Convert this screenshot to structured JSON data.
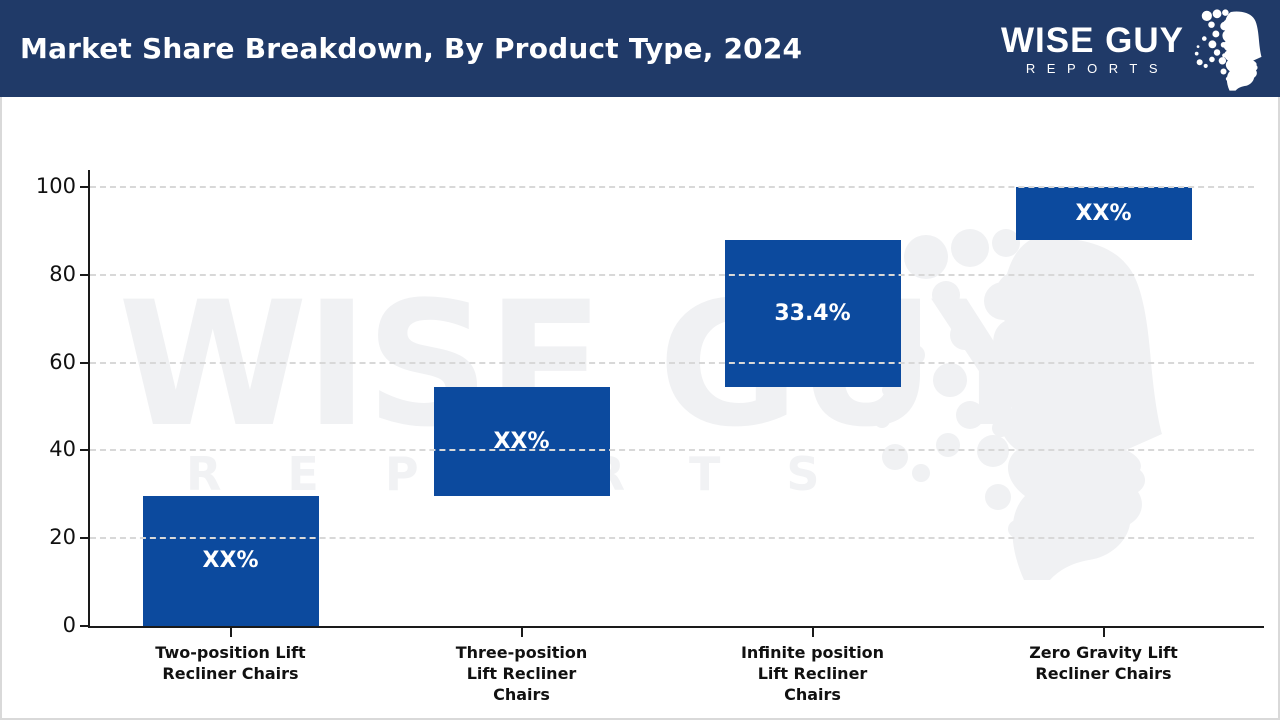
{
  "header": {
    "title": "Market Share Breakdown, By Product Type, 2024",
    "logo": {
      "line1": "WISE GUY",
      "line2": "REPORTS"
    }
  },
  "watermark": {
    "line1": "WISE GUY",
    "line2": "REPORTS"
  },
  "chart_data": {
    "type": "bar",
    "subtype": "stacked-waterfall-percentage",
    "title": "Market Share Breakdown, By Product Type, 2024",
    "categories": [
      "Two-position Lift\nRecliner Chairs",
      "Three-position\nLift Recliner\nChairs",
      "Infinite position\nLift Recliner\nChairs",
      "Zero Gravity Lift\nRecliner Chairs"
    ],
    "values": [
      29.7,
      24.8,
      33.4,
      12.1
    ],
    "segment_ranges": [
      [
        0,
        29.7
      ],
      [
        29.7,
        54.5
      ],
      [
        54.5,
        87.9
      ],
      [
        87.9,
        100
      ]
    ],
    "bar_labels": [
      "XX%",
      "XX%",
      "33.4%",
      "XX%"
    ],
    "xlabel": "",
    "ylabel": "",
    "ylim": [
      0,
      100
    ],
    "yticks": [
      0,
      20,
      40,
      60,
      80,
      100
    ],
    "grid": "horizontal-dashed",
    "legend": "none",
    "bar_color": "#0c4a9e",
    "bar_label_color": "#ffffff"
  },
  "colors": {
    "header_bg": "#203a68",
    "accent_blue": "#0c4a9e",
    "gridline": "#d8d8d8",
    "axis": "#1a1a1a",
    "watermark": "#f0f1f3",
    "page_border": "#d9d9d9"
  }
}
